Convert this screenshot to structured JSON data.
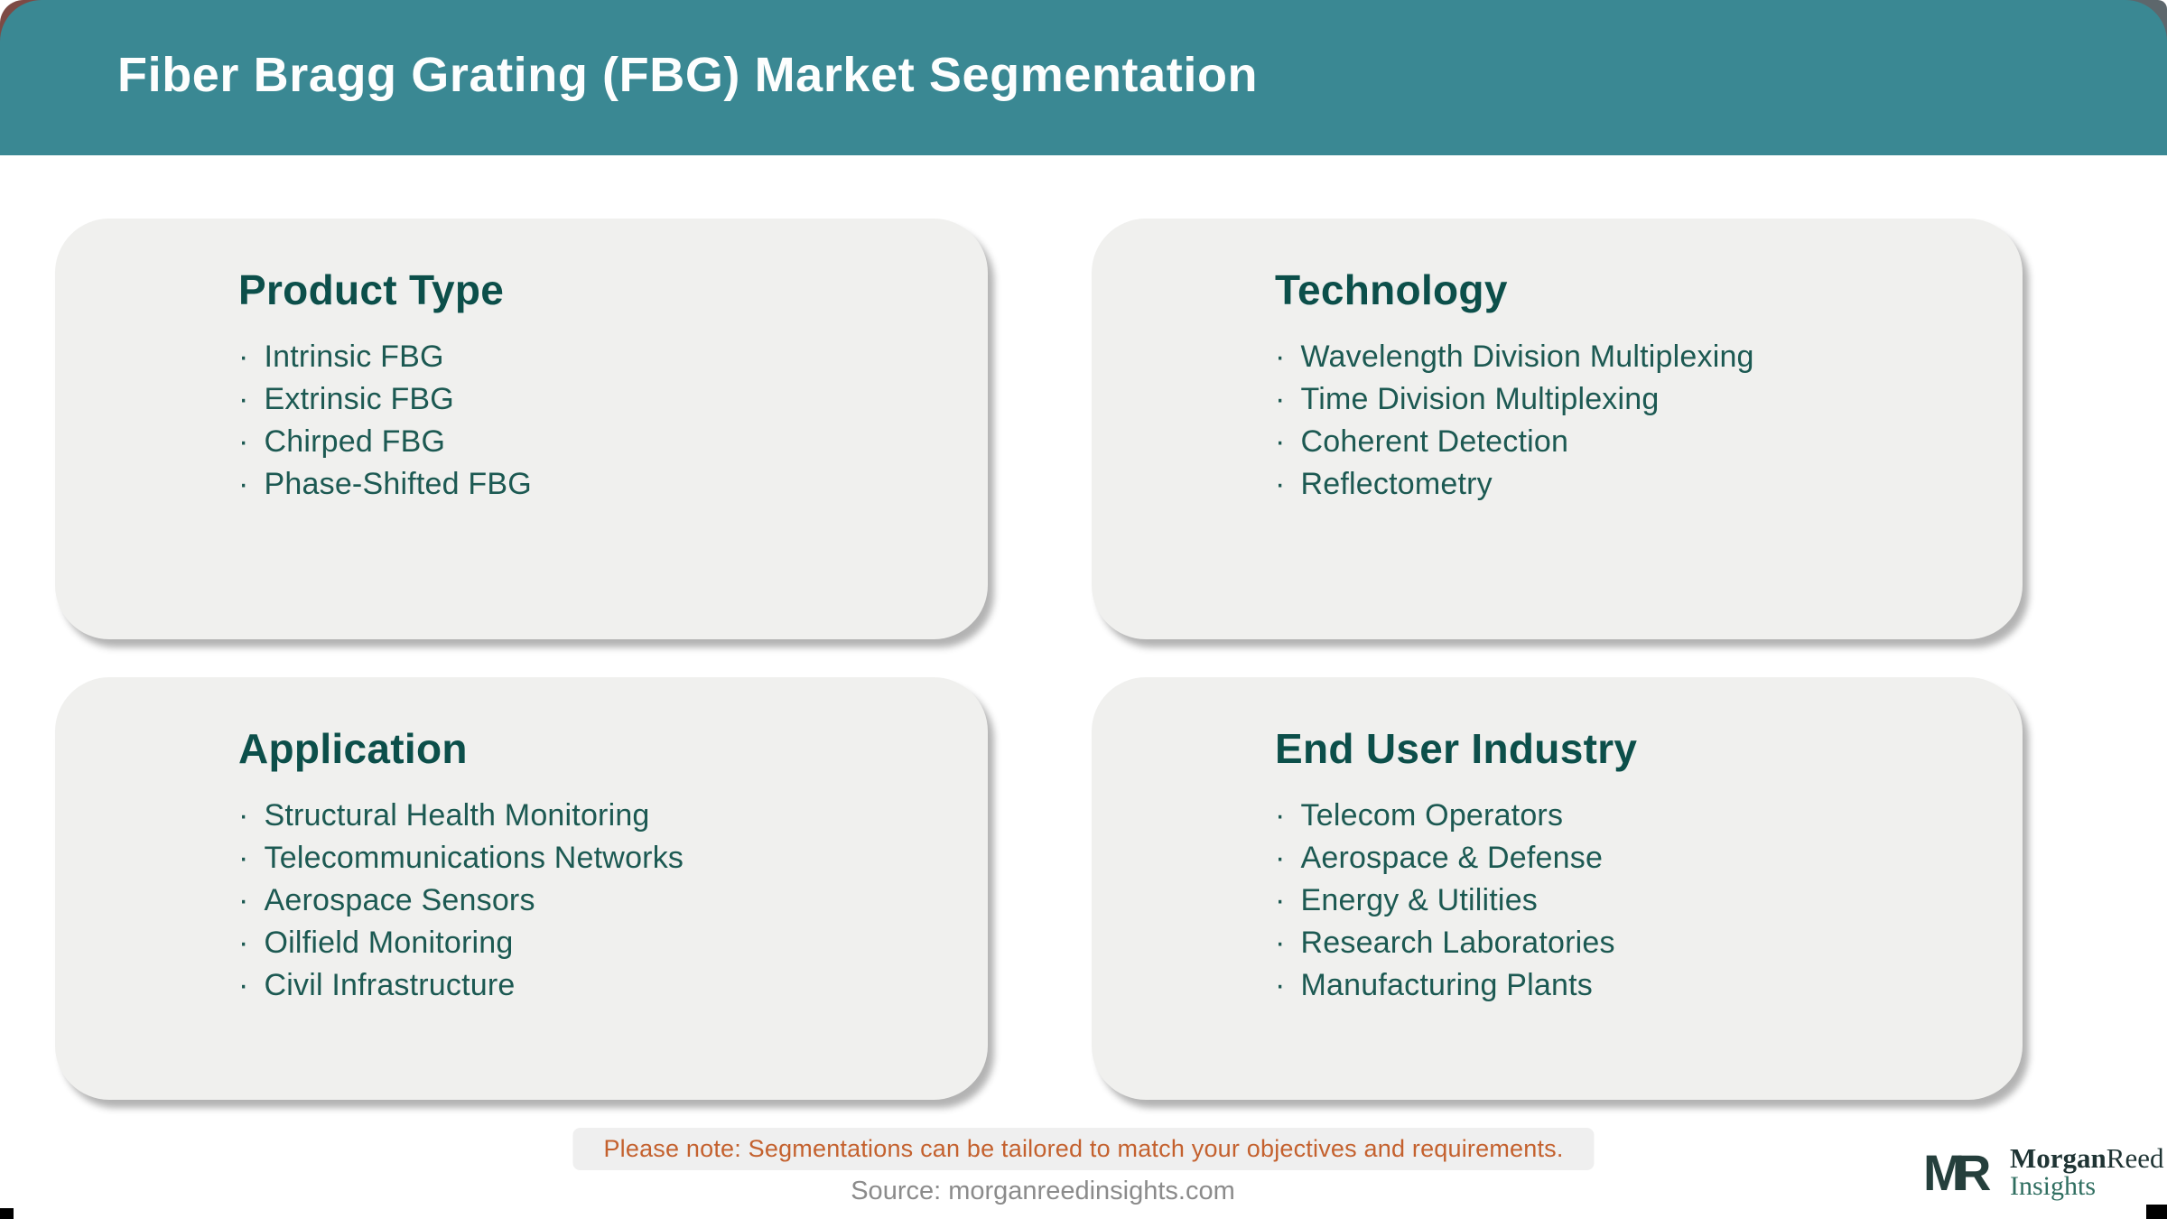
{
  "header": {
    "title": "Fiber Bragg Grating (FBG) Market Segmentation"
  },
  "bullet": "·",
  "cards": [
    {
      "title": "Product Type",
      "items": [
        "Intrinsic FBG",
        "Extrinsic FBG",
        "Chirped FBG",
        "Phase-Shifted FBG"
      ]
    },
    {
      "title": "Technology",
      "items": [
        "Wavelength Division Multiplexing",
        "Time Division Multiplexing",
        "Coherent Detection",
        "Reflectometry"
      ]
    },
    {
      "title": "Application",
      "items": [
        "Structural Health Monitoring",
        "Telecommunications Networks",
        "Aerospace Sensors",
        "Oilfield Monitoring",
        "Civil Infrastructure"
      ]
    },
    {
      "title": "End User Industry",
      "items": [
        "Telecom Operators",
        "Aerospace & Defense",
        "Energy & Utilities",
        "Research Laboratories",
        "Manufacturing Plants"
      ]
    }
  ],
  "note": {
    "text": "Please note: Segmentations can be tailored to match your objectives and requirements."
  },
  "source": {
    "text": "Source: morganreedinsights.com"
  },
  "logo": {
    "monogram_m": "M",
    "monogram_r": "R",
    "name_bold": "Morgan",
    "name_light": "Reed",
    "tagline": "Insights"
  },
  "colors": {
    "header_bg": "#3a8893",
    "card_bg": "#f0f0ee",
    "heading_text": "#0c4f4a",
    "item_text": "#1c5952",
    "note_text": "#c4612e",
    "note_bg": "#efefef",
    "source_text": "#8b8b8b",
    "logo_dark": "#253f3c",
    "logo_teal": "#2f6e60"
  }
}
